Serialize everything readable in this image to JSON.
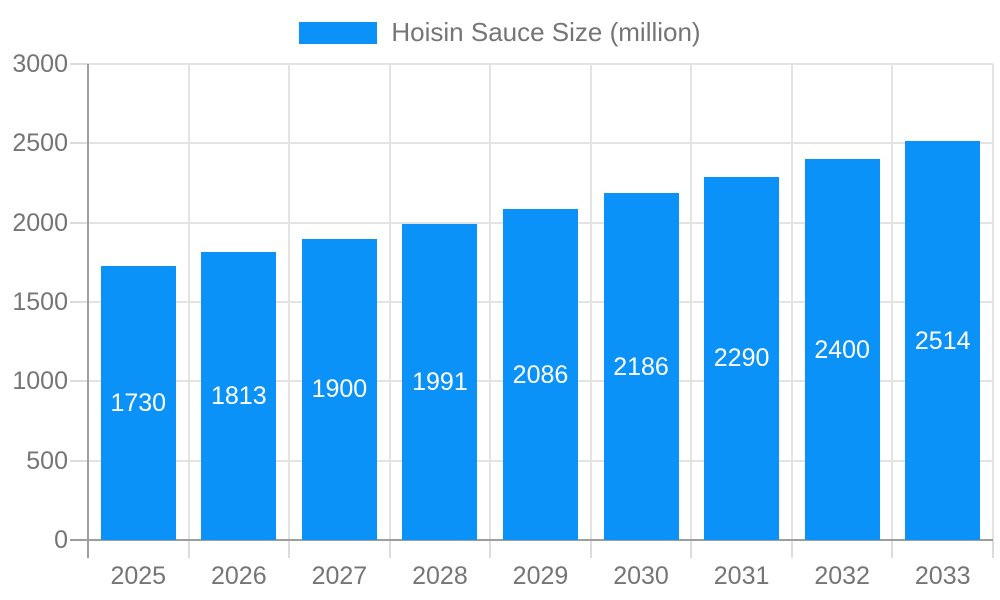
{
  "legend": {
    "label": "Hoisin Sauce Size (million)"
  },
  "chart_data": {
    "type": "bar",
    "title": "Hoisin Sauce Size (million)",
    "categories": [
      "2025",
      "2026",
      "2027",
      "2028",
      "2029",
      "2030",
      "2031",
      "2032",
      "2033"
    ],
    "values": [
      1730,
      1813,
      1900,
      1991,
      2086,
      2186,
      2290,
      2400,
      2514
    ],
    "xlabel": "",
    "ylabel": "",
    "ylim": [
      0,
      3000
    ],
    "yticks": [
      0,
      500,
      1000,
      1500,
      2000,
      2500,
      3000
    ],
    "grid": true,
    "legend_position": "top",
    "value_labels": "inside-middle",
    "colors": {
      "bar": "#0b92f8",
      "value_label": "#ffffff",
      "grid": "#e3e3e3",
      "tick": "#dcdcdc",
      "axis": "#9e9e9e",
      "text": "#757575",
      "background": "#ffffff"
    }
  }
}
